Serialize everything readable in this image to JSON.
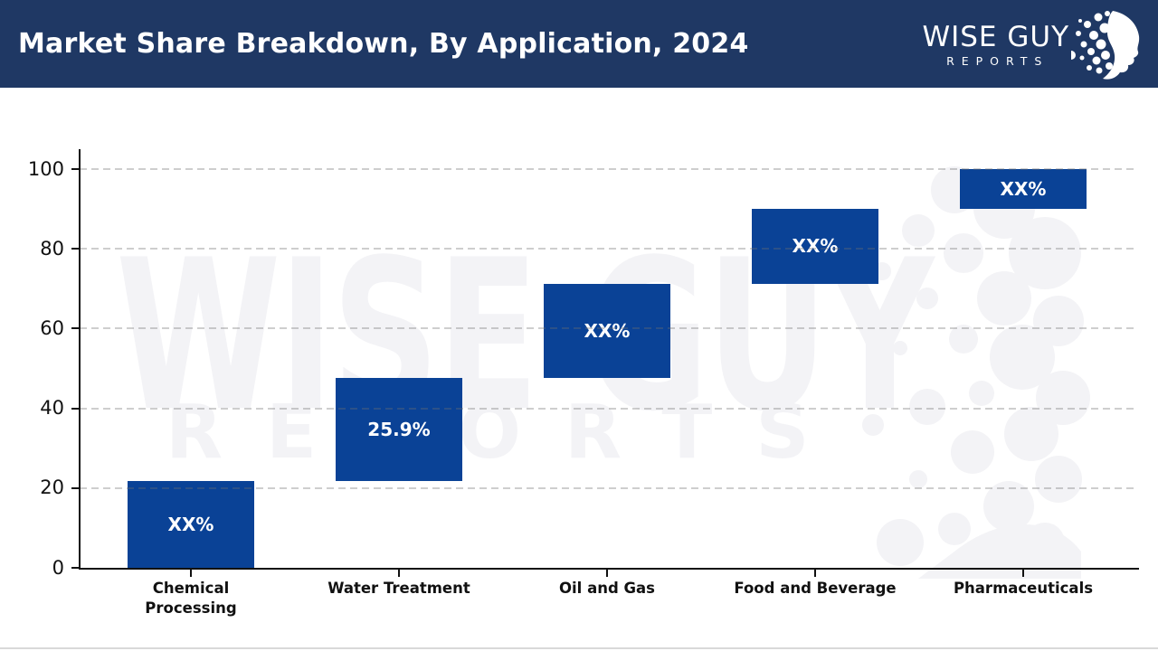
{
  "header": {
    "title": "Market Share Breakdown, By Application, 2024",
    "logo": {
      "name": "WISE GUY",
      "tagline": "REPORTS"
    }
  },
  "watermark": {
    "name": "WISE GUY",
    "tagline": "REPORTS"
  },
  "chart_data": {
    "type": "bar",
    "subtype": "waterfall-floating-bars",
    "title": "Market Share Breakdown, By Application, 2024",
    "categories": [
      "Chemical\nProcessing",
      "Water Treatment",
      "Oil and Gas",
      "Food and Beverage",
      "Pharmaceuticals"
    ],
    "segments": [
      {
        "category": "Chemical Processing",
        "start": 0,
        "end": 21.7,
        "label": "XX%"
      },
      {
        "category": "Water Treatment",
        "start": 21.7,
        "end": 47.6,
        "label": "25.9%"
      },
      {
        "category": "Oil and Gas",
        "start": 47.6,
        "end": 71.3,
        "label": "XX%"
      },
      {
        "category": "Food and Beverage",
        "start": 71.3,
        "end": 90.0,
        "label": "XX%"
      },
      {
        "category": "Pharmaceuticals",
        "start": 90.0,
        "end": 100.0,
        "label": "XX%"
      }
    ],
    "yticks": [
      0,
      20,
      40,
      60,
      80,
      100
    ],
    "ylim": [
      0,
      105
    ],
    "xlabel": "",
    "ylabel": "",
    "legend": null,
    "grid": "horizontal-dashed",
    "bar_color": "#0a4296",
    "colors": {
      "header_background": "#1f3864",
      "title_text": "#ffffff",
      "bar": "#0a4296",
      "bar_label_text": "#ffffff",
      "axis": "#111111",
      "gridline": "#d2d2d2",
      "watermark": "#f3f3f6"
    }
  }
}
